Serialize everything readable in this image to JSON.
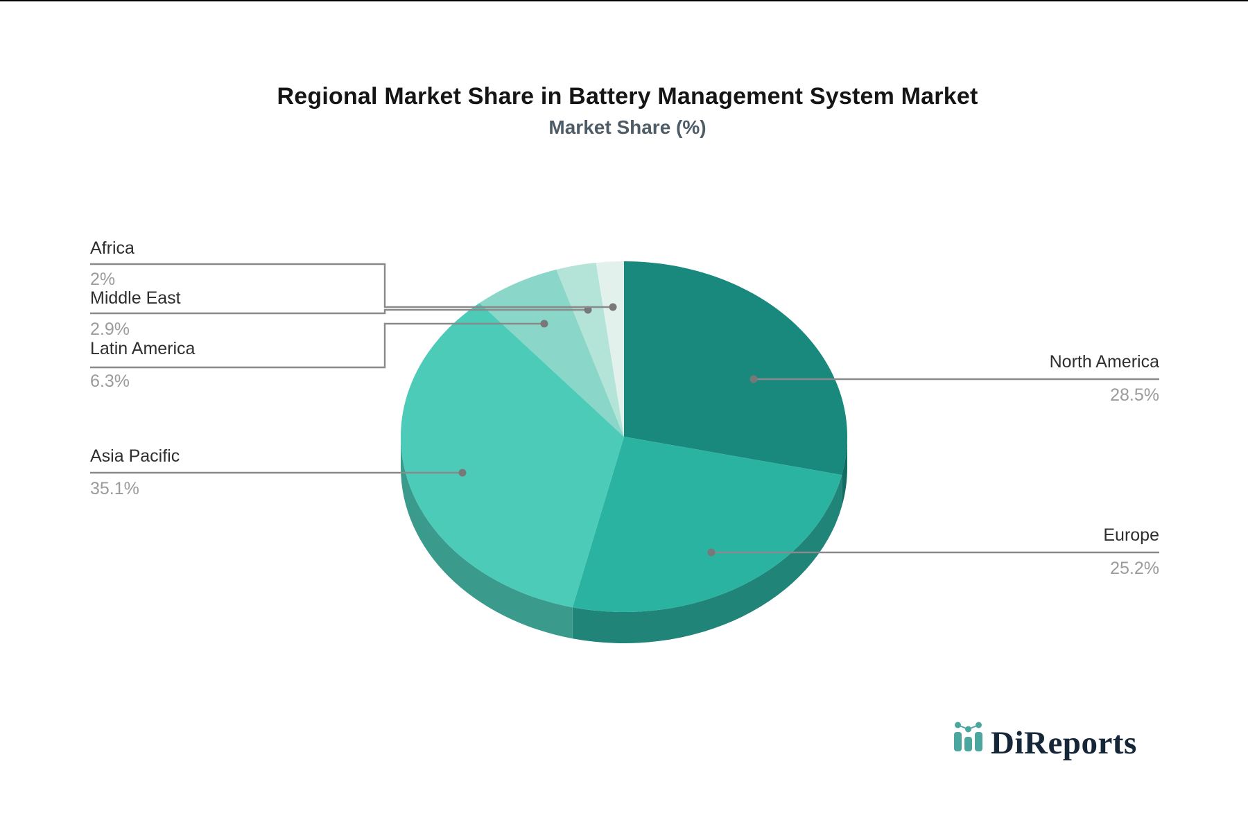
{
  "title": "Regional Market Share in Battery Management System Market",
  "subtitle": "Market Share (%)",
  "chart_data": {
    "type": "pie",
    "title": "Regional Market Share in Battery Management System Market",
    "subtitle": "Market Share (%)",
    "unit": "%",
    "effect": "3d",
    "start_angle": "12-o'clock",
    "direction": "clockwise",
    "slices": [
      {
        "label": "North America",
        "value": 28.5,
        "display": "28.5%",
        "color": "#19897d",
        "side_color": "#136b61",
        "label_side": "right"
      },
      {
        "label": "Europe",
        "value": 25.2,
        "display": "25.2%",
        "color": "#2bb3a2",
        "side_color": "#218478",
        "label_side": "right"
      },
      {
        "label": "Asia Pacific",
        "value": 35.1,
        "display": "35.1%",
        "color": "#4ccbb9",
        "side_color": "#3a9b8d",
        "label_side": "left"
      },
      {
        "label": "Latin America",
        "value": 6.3,
        "display": "6.3%",
        "color": "#8ad7c9",
        "side_color": "#6fbfae",
        "label_side": "left"
      },
      {
        "label": "Middle East",
        "value": 2.9,
        "display": "2.9%",
        "color": "#b4e3d8",
        "side_color": "#93c9bc",
        "label_side": "left"
      },
      {
        "label": "Africa",
        "value": 2,
        "display": "2%",
        "color": "#e3f1ec",
        "side_color": "#bcd8d0",
        "label_side": "left"
      }
    ],
    "colors": {
      "leader_line": "#8a8a8a",
      "dot": "#787878",
      "label_text": "#2e2e2e",
      "pct_text": "#9b9b9b"
    }
  },
  "logo": {
    "text": "DiReports",
    "icon": "bar-chart-icon",
    "icon_color": "#4aa69e",
    "text_color": "#152638"
  }
}
